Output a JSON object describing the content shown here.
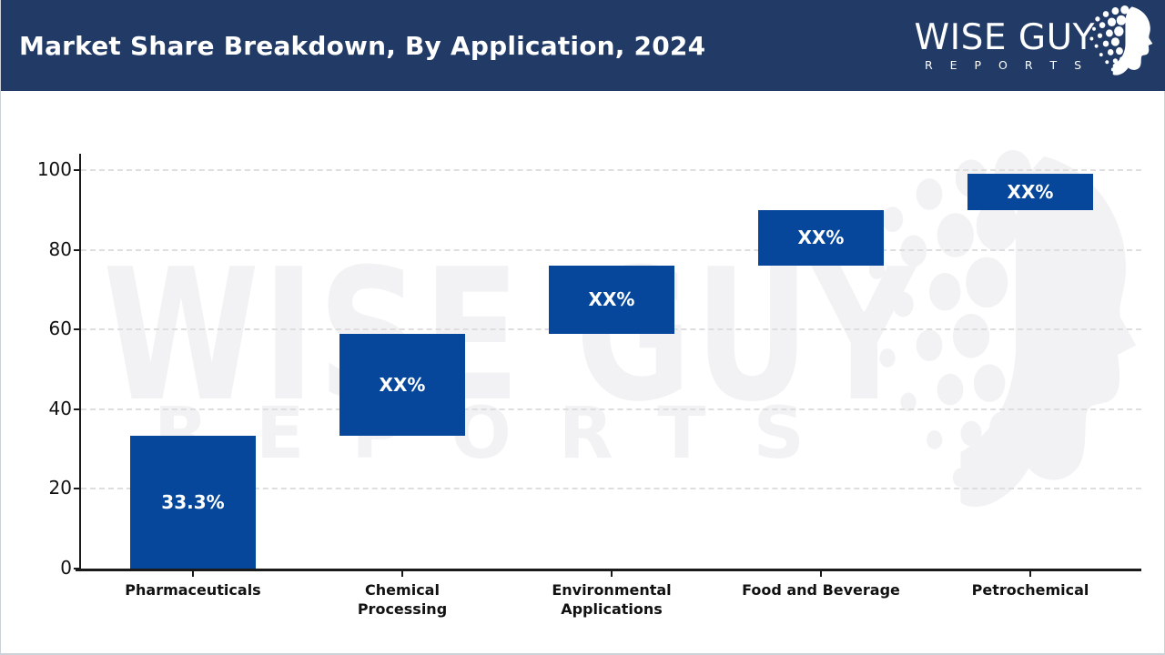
{
  "header": {
    "title": "Market Share Breakdown, By Application, 2024",
    "logo": {
      "name": "WISE GUY",
      "sub": "R E P O R T S"
    }
  },
  "watermark": {
    "line1": "WISE GUY",
    "line2": "REPORTS"
  },
  "colors": {
    "header_bg": "#213A66",
    "bar": "#06479B",
    "grid": "#DEDEDE",
    "axis": "#1A1A1A",
    "bar_label": "#FFFFFF",
    "watermark": "#F2F2F4"
  },
  "chart_data": {
    "type": "bar",
    "subtype": "waterfall",
    "title": "Market Share Breakdown, By Application, 2024",
    "xlabel": "",
    "ylabel": "",
    "ylim": [
      0,
      105
    ],
    "yticks": [
      0,
      20,
      40,
      60,
      80,
      100
    ],
    "grid": "horizontal dashed",
    "legend": "none",
    "categories": [
      "Pharmaceuticals",
      "Chemical Processing",
      "Environmental Applications",
      "Food and Beverage",
      "Petrochemical"
    ],
    "segments": [
      {
        "category": "Pharmaceuticals",
        "display": "Pharmaceuticals",
        "start": 0,
        "end": 33.3,
        "label": "33.3%"
      },
      {
        "category": "Chemical Processing",
        "display": "Chemical\nProcessing",
        "start": 33.3,
        "end": 59.0,
        "label": "XX%"
      },
      {
        "category": "Environmental Applications",
        "display": "Environmental\nApplications",
        "start": 59.0,
        "end": 76.0,
        "label": "XX%"
      },
      {
        "category": "Food and Beverage",
        "display": "Food and Beverage",
        "start": 76.0,
        "end": 90.0,
        "label": "XX%"
      },
      {
        "category": "Petrochemical",
        "display": "Petrochemical",
        "start": 90.0,
        "end": 99.0,
        "label": "XX%"
      }
    ]
  }
}
